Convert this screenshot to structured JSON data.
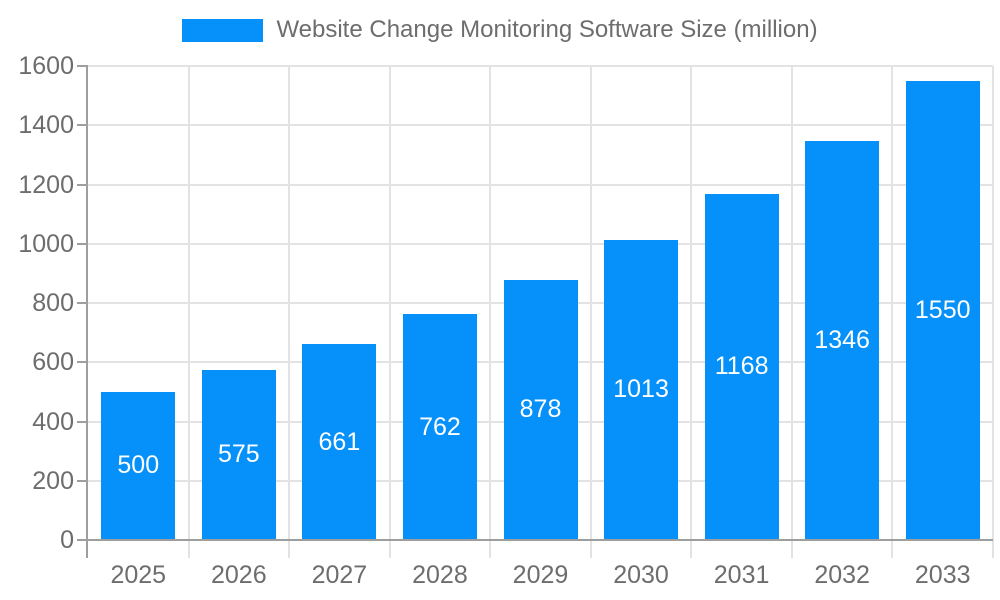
{
  "chart_data": {
    "type": "bar",
    "title": "Website Change Monitoring Software Size (million)",
    "categories": [
      "2025",
      "2026",
      "2027",
      "2028",
      "2029",
      "2030",
      "2031",
      "2032",
      "2033"
    ],
    "values": [
      500,
      575,
      661,
      762,
      878,
      1013,
      1168,
      1346,
      1550
    ],
    "xlabel": "",
    "ylabel": "",
    "ylim": [
      0,
      1600
    ],
    "ytick_step": 200,
    "grid": true,
    "legend_position": "top",
    "value_labels": "inside-center-white",
    "bar_color": "#0691fa",
    "label_color": "#ffffff",
    "text_color": "#6d6d6d",
    "grid_color": "#e3e3e3",
    "axis_color": "#9e9e9e",
    "background": "#ffffff"
  }
}
